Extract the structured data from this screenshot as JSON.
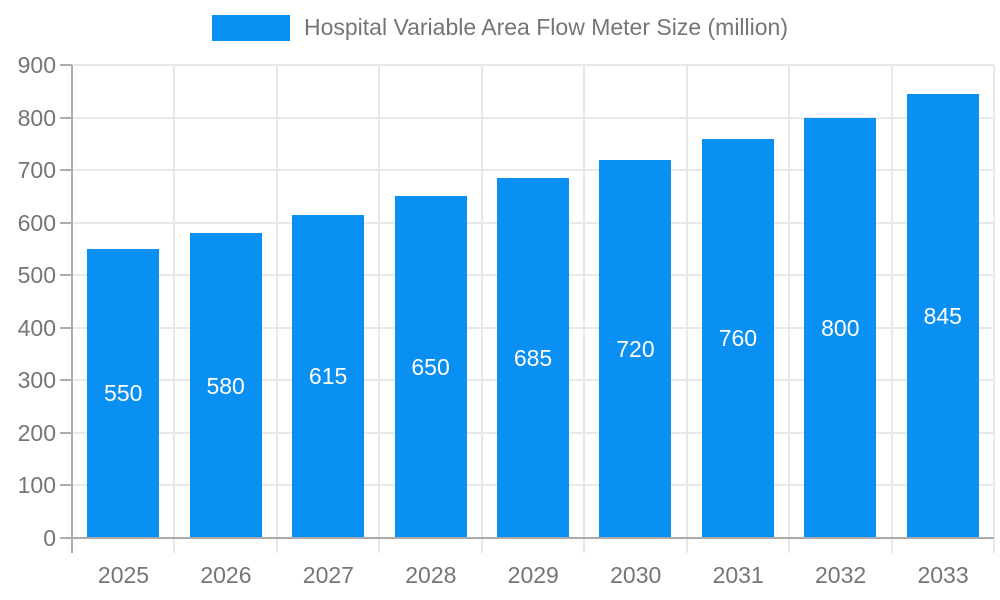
{
  "chart_data": {
    "type": "bar",
    "title": "Hospital Variable Area Flow Meter Size (million)",
    "legend": [
      "Hospital Variable Area Flow Meter Size (million)"
    ],
    "legend_position": "top-center",
    "categories": [
      "2025",
      "2026",
      "2027",
      "2028",
      "2029",
      "2030",
      "2031",
      "2032",
      "2033"
    ],
    "series": [
      {
        "name": "Hospital Variable Area Flow Meter Size (million)",
        "values": [
          550,
          580,
          615,
          650,
          685,
          720,
          760,
          800,
          845
        ]
      }
    ],
    "value_labels": [
      550,
      580,
      615,
      650,
      685,
      720,
      760,
      800,
      845
    ],
    "value_label_position": "inside-center",
    "xlabel": "",
    "ylabel": "",
    "ylim": [
      0,
      900
    ],
    "yticks": [
      0,
      100,
      200,
      300,
      400,
      500,
      600,
      700,
      800,
      900
    ],
    "grid": true,
    "colors": {
      "bar": "#0a90f2",
      "legend_text": "#757575",
      "axis_text": "#757575",
      "grid_line": "#e8e8e8",
      "axis_line": "#ababab",
      "value_label_text": "#ffffff",
      "background": "#ffffff"
    }
  }
}
